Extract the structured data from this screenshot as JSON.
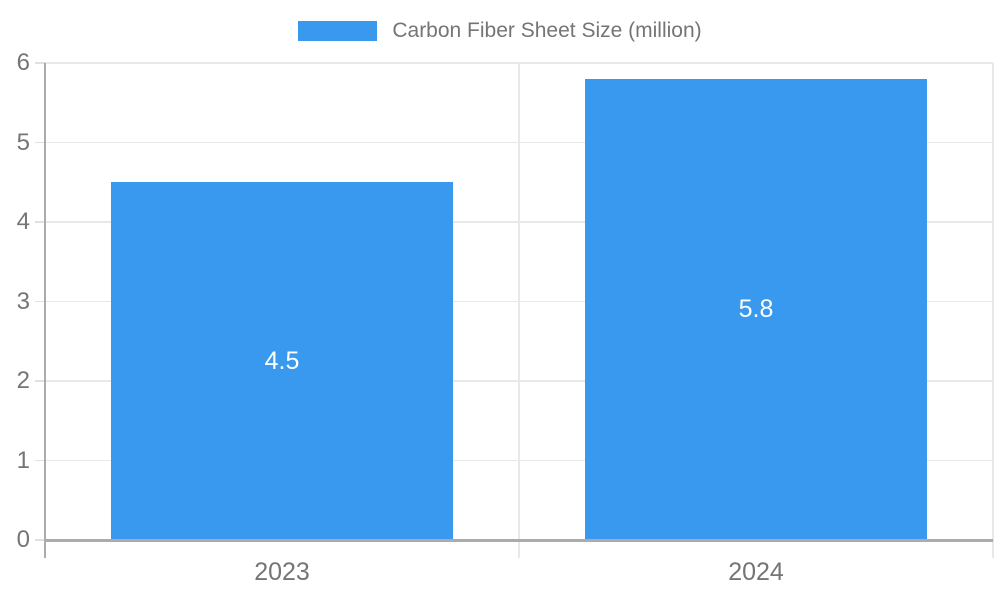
{
  "legend": {
    "label": "Carbon Fiber Sheet Size (million)"
  },
  "chart_data": {
    "type": "bar",
    "title": "Carbon Fiber Sheet Size (million)",
    "series_name": "Carbon Fiber Sheet Size (million)",
    "categories": [
      "2023",
      "2024"
    ],
    "values": [
      4.5,
      5.8
    ],
    "value_labels": [
      "4.5",
      "5.8"
    ],
    "xlabel": "",
    "ylabel": "",
    "ylim": [
      0,
      6
    ],
    "yticks": [
      0,
      1,
      2,
      3,
      4,
      5,
      6
    ],
    "grid": true,
    "legend_position": "top-center",
    "value_label_position": "inside-center",
    "colors": {
      "bar": "#3899EE",
      "value_label": "#FFFFFF",
      "axis_tick_label": "#757575",
      "legend_text": "#757575",
      "axis_line": "#ABABAB",
      "gridline": "#E8E8E8",
      "background": "#FFFFFF"
    }
  }
}
